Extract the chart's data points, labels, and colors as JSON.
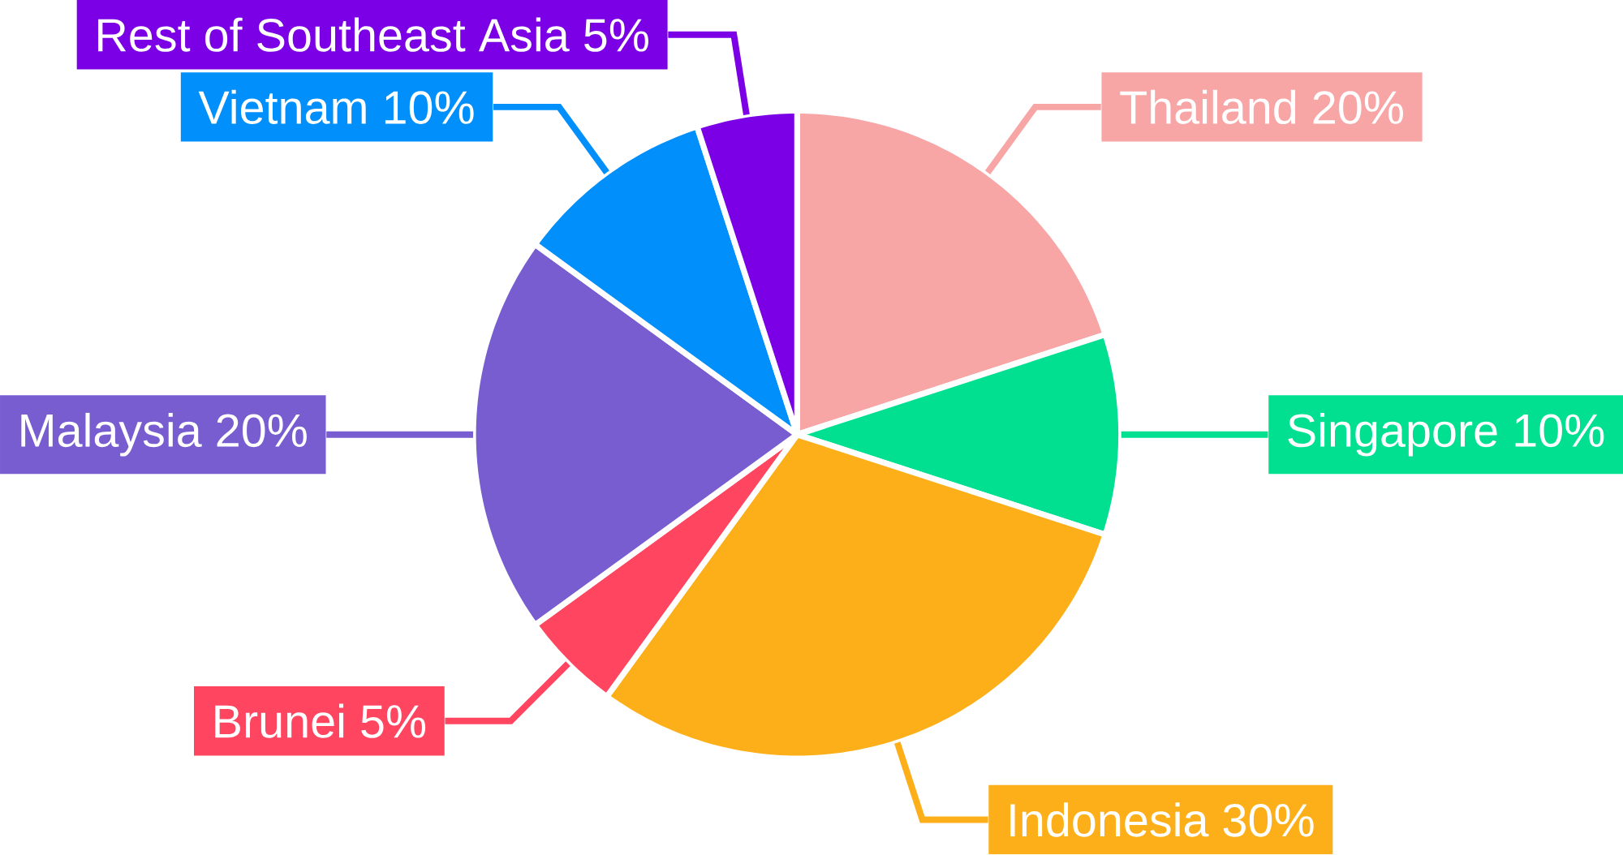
{
  "chart_data": {
    "type": "pie",
    "categories": [
      "Thailand",
      "Singapore",
      "Indonesia",
      "Brunei",
      "Malaysia",
      "Vietnam",
      "Rest of Southeast Asia"
    ],
    "values": [
      20,
      10,
      30,
      5,
      20,
      10,
      5
    ],
    "value_labels": [
      "20%",
      "10%",
      "30%",
      "5%",
      "20%",
      "10%",
      "5%"
    ],
    "colors": [
      "#f8a5a6",
      "#00e090",
      "#fdaf1a",
      "#ff4560",
      "#775dd0",
      "#008ffb",
      "#7b00e6"
    ]
  }
}
